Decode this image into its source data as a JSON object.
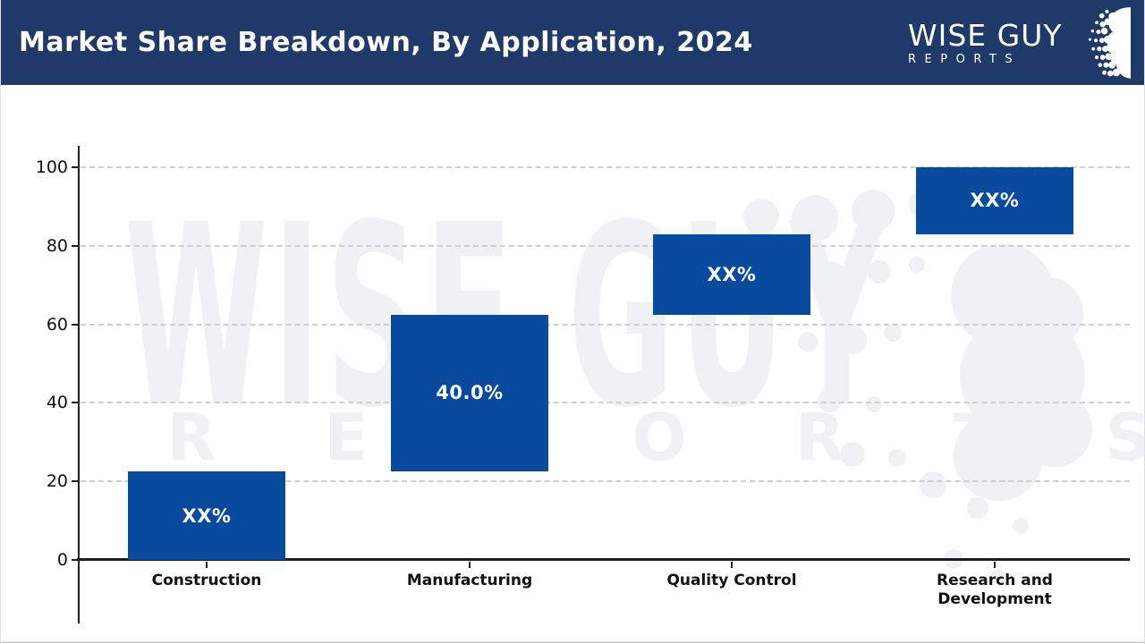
{
  "header": {
    "title": "Market Share Breakdown, By Application, 2024",
    "logo": {
      "line1": "WISE GUY",
      "line2": "REPORTS"
    }
  },
  "watermark": {
    "line1": "WISE GUY",
    "line2": "R E P O R T S"
  },
  "colors": {
    "header_bg": "#1f3968",
    "bar": "#084a9d",
    "axis": "#1d1d1d",
    "grid": "#cfcfcf",
    "tick_text": "#111111",
    "bar_label_text": "#ffffff",
    "watermark": "#f0f1f4",
    "bottom_rule": "#d6d6d6"
  },
  "chart_data": {
    "type": "bar",
    "subtype": "waterfall",
    "title": "Market Share Breakdown, By Application, 2024",
    "categories": [
      "Construction",
      "Manufacturing",
      "Quality Control",
      "Research and Development"
    ],
    "segments": [
      {
        "category": "Construction",
        "start": 0,
        "end": 22.5,
        "label": "XX%"
      },
      {
        "category": "Manufacturing",
        "start": 22.5,
        "end": 62.5,
        "label": "40.0%"
      },
      {
        "category": "Quality Control",
        "start": 62.5,
        "end": 83,
        "label": "XX%"
      },
      {
        "category": "Research and Development",
        "start": 83,
        "end": 100,
        "label": "XX%"
      }
    ],
    "yticks": [
      0,
      20,
      40,
      60,
      80,
      100
    ],
    "ylim": [
      0,
      100
    ],
    "xlabel": "",
    "ylabel": "",
    "grid": "horizontal-dashed",
    "legend": "none",
    "bar_color": "#084a9d"
  }
}
